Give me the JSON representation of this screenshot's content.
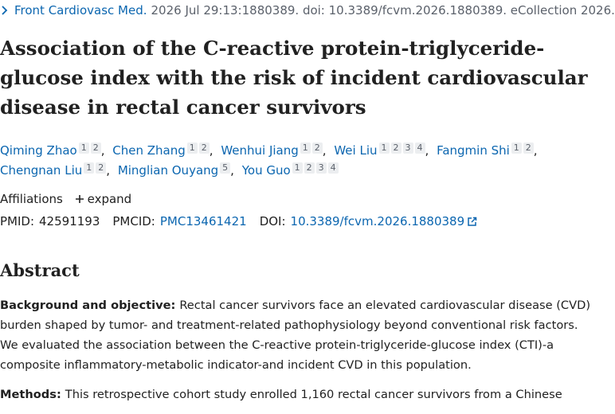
{
  "citation": {
    "journal": "Front Cardiovasc Med.",
    "details": "2026 Jul 29:13:1880389. doi: 10.3389/fcvm.2026.1880389. eCollection 2026."
  },
  "title": "Association of the C-reactive protein-triglyceride-glucose index with the risk of incident cardiovascular disease in rectal cancer survivors",
  "authors": [
    {
      "name": "Qiming Zhao",
      "affiliations": [
        1,
        2
      ]
    },
    {
      "name": "Chen Zhang",
      "affiliations": [
        1,
        2
      ]
    },
    {
      "name": "Wenhui Jiang",
      "affiliations": [
        1,
        2
      ]
    },
    {
      "name": "Wei Liu",
      "affiliations": [
        1,
        2,
        3,
        4
      ]
    },
    {
      "name": "Fangmin Shi",
      "affiliations": [
        1,
        2
      ]
    },
    {
      "name": "Chengnan Liu",
      "affiliations": [
        1,
        2
      ]
    },
    {
      "name": "Minglian Ouyang",
      "affiliations": [
        5
      ]
    },
    {
      "name": "You Guo",
      "affiliations": [
        1,
        2,
        3,
        4
      ]
    }
  ],
  "author_separator": ",",
  "affiliations": {
    "label": "Affiliations",
    "toggle": "expand"
  },
  "identifiers": {
    "pmid_label": "PMID:",
    "pmid": "42591193",
    "pmcid_label": "PMCID:",
    "pmcid": "PMC13461421",
    "doi_label": "DOI:",
    "doi": "10.3389/fcvm.2026.1880389"
  },
  "abstract": {
    "heading": "Abstract",
    "sections": [
      {
        "label": "Background and objective:",
        "text": "Rectal cancer survivors face an elevated cardiovascular disease (CVD) burden shaped by tumor- and treatment-related pathophysiology beyond conventional risk factors. We evaluated the association between the C-reactive protein-triglyceride-glucose index (CTI)-a composite inflammatory-metabolic indicator-and incident CVD in this population."
      },
      {
        "label": "Methods:",
        "text": "This retrospective cohort study enrolled 1,160 rectal cancer survivors from a Chinese"
      }
    ]
  }
}
